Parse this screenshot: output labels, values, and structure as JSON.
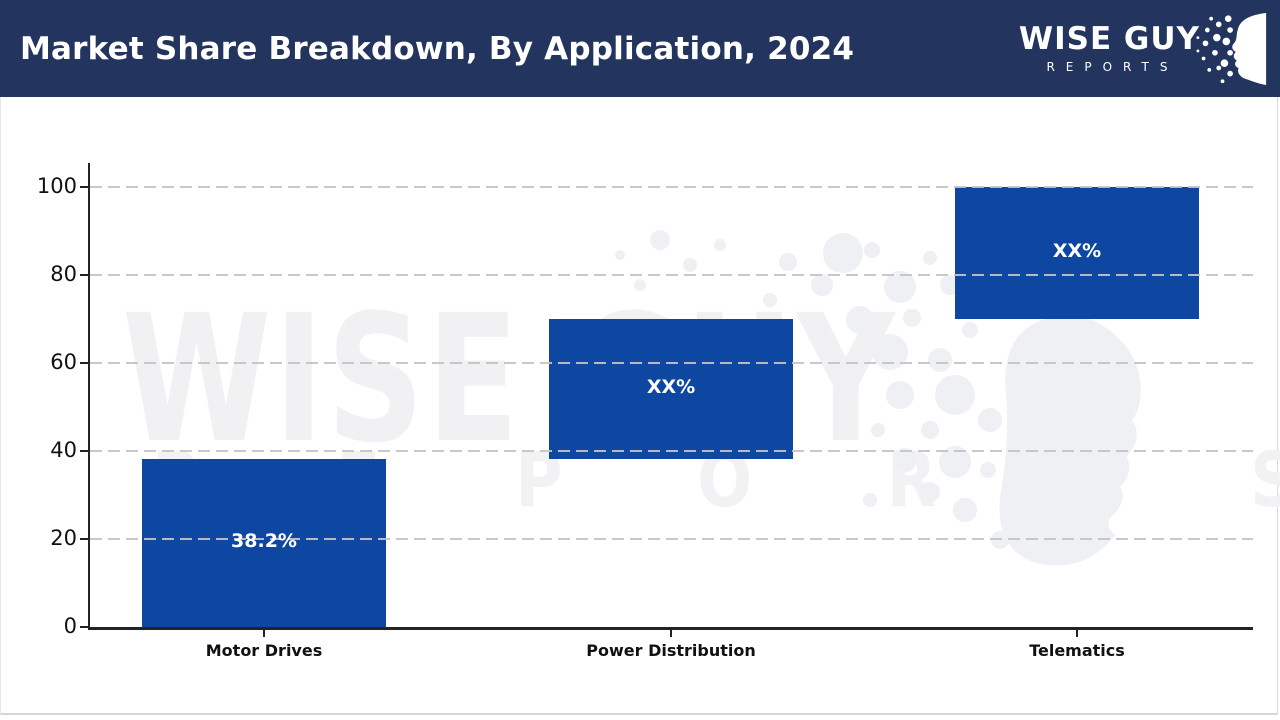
{
  "header": {
    "title": "Market Share Breakdown, By Application, 2024",
    "brand": {
      "name_line": "WISE GUY",
      "reports_line": "REPORTS"
    }
  },
  "watermark": {
    "big_text": "WISE GUY",
    "reports_text": "R E P O R T S"
  },
  "chart_data": {
    "type": "bar",
    "subtype": "stacked-waterfall",
    "title": "Market Share Breakdown, By Application, 2024",
    "categories": [
      "Motor Drives",
      "Power Distribution",
      "Telematics"
    ],
    "bars": [
      {
        "category": "Motor Drives",
        "label": "38.2%",
        "start": 0,
        "end": 38.2
      },
      {
        "category": "Power Distribution",
        "label": "XX%",
        "start": 38.2,
        "end": 70
      },
      {
        "category": "Telematics",
        "label": "XX%",
        "start": 70,
        "end": 100
      }
    ],
    "xlabel": "",
    "ylabel": "",
    "ylim": [
      0,
      100
    ],
    "yticks": [
      0,
      20,
      40,
      60,
      80,
      100
    ],
    "grid": "horizontal-dashed",
    "legend": false
  },
  "colors": {
    "header_bg": "#23355f",
    "bar": "#0e47a1",
    "bar_label": "#ffffff",
    "grid": "#c8c8cb",
    "axis": "#232327",
    "watermark": "#f1f1f4"
  }
}
